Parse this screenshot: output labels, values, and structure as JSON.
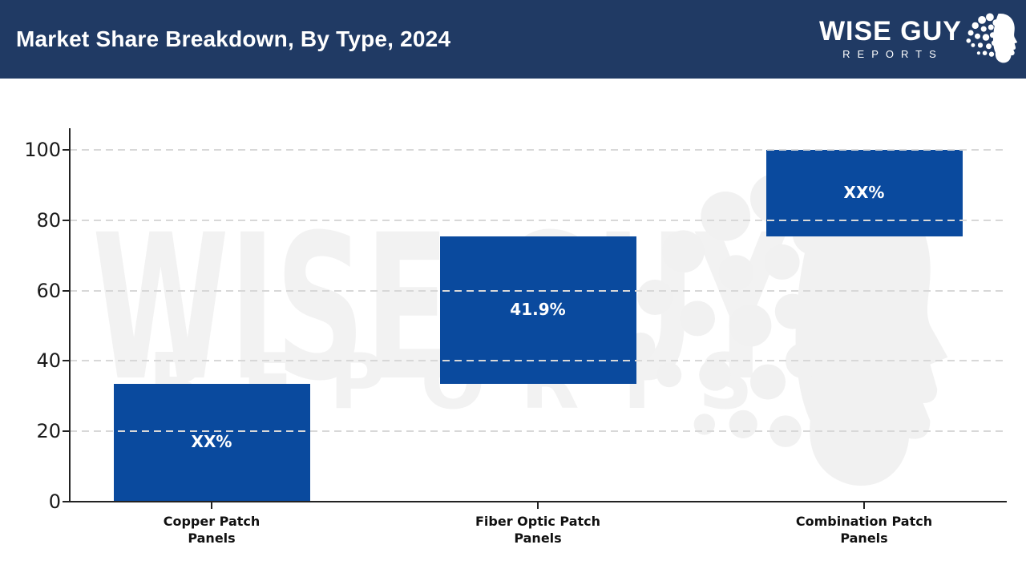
{
  "header": {
    "title": "Market Share Breakdown, By Type, 2024",
    "logo": {
      "name": "WISE GUY",
      "tagline": "REPORTS"
    }
  },
  "watermark": {
    "name": "WISE GUY",
    "tagline": "REPORTS"
  },
  "chart_data": {
    "type": "bar",
    "subtype": "floating-segment-bars",
    "title": "Market Share Breakdown, By Type, 2024",
    "categories": [
      [
        "Copper Patch",
        "Panels"
      ],
      [
        "Fiber Optic Patch",
        "Panels"
      ],
      [
        "Combination Patch",
        "Panels"
      ]
    ],
    "bars": [
      {
        "category": "Copper Patch Panels",
        "start": 0,
        "end": 33.5,
        "label": "XX%"
      },
      {
        "category": "Fiber Optic Patch Panels",
        "start": 33.5,
        "end": 75.4,
        "label": "41.9%"
      },
      {
        "category": "Combination Patch Panels",
        "start": 75.4,
        "end": 100,
        "label": "XX%"
      }
    ],
    "ylim": [
      0,
      100
    ],
    "yticks": [
      0,
      20,
      40,
      60,
      80,
      100
    ],
    "grid": {
      "horizontal": true,
      "style": "dashed"
    },
    "legend": null,
    "bar_color": "#0a4a9e",
    "value_label_color": "#ffffff"
  },
  "colors": {
    "header_bg": "#203a64",
    "header_text": "#ffffff",
    "bar": "#0a4a9e",
    "axis": "#1a1a1a",
    "grid": "#d9d9d9",
    "watermark": "#f2f2f2"
  }
}
